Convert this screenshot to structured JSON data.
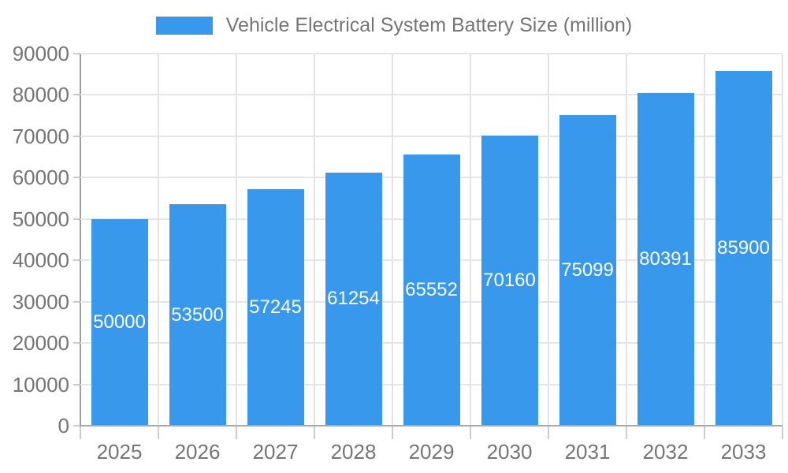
{
  "legend": {
    "label": "Vehicle Electrical System Battery Size (million)"
  },
  "chart_data": {
    "type": "bar",
    "title": "Vehicle Electrical System Battery Size (million)",
    "categories": [
      "2025",
      "2026",
      "2027",
      "2028",
      "2029",
      "2030",
      "2031",
      "2032",
      "2033"
    ],
    "series": [
      {
        "name": "Vehicle Electrical System Battery Size (million)",
        "values": [
          50000,
          53500,
          57245,
          61254,
          65552,
          70160,
          75099,
          80391,
          85900
        ]
      }
    ],
    "value_labels": [
      "50000",
      "53500",
      "57245",
      "61254",
      "65552",
      "70160",
      "75099",
      "80391",
      "85900"
    ],
    "xlabel": "",
    "ylabel": "",
    "ylim": [
      0,
      90000
    ],
    "ytick_step": 10000,
    "ytick_labels": [
      "0",
      "10000",
      "20000",
      "30000",
      "40000",
      "50000",
      "60000",
      "70000",
      "80000",
      "90000"
    ],
    "grid": true,
    "legend_position": "top",
    "colors": {
      "bar": "#3898EC",
      "bar_value_label": "#FFFFFF",
      "axis_text": "#757575",
      "y_axis_line": "#9E9E9E",
      "x_axis_line": "#A8A8A8",
      "gridline_h": "#E6E6E6",
      "gridline_v": "#E3E3E3",
      "tick": "#CCCCCC",
      "background": "#FFFFFF"
    }
  }
}
